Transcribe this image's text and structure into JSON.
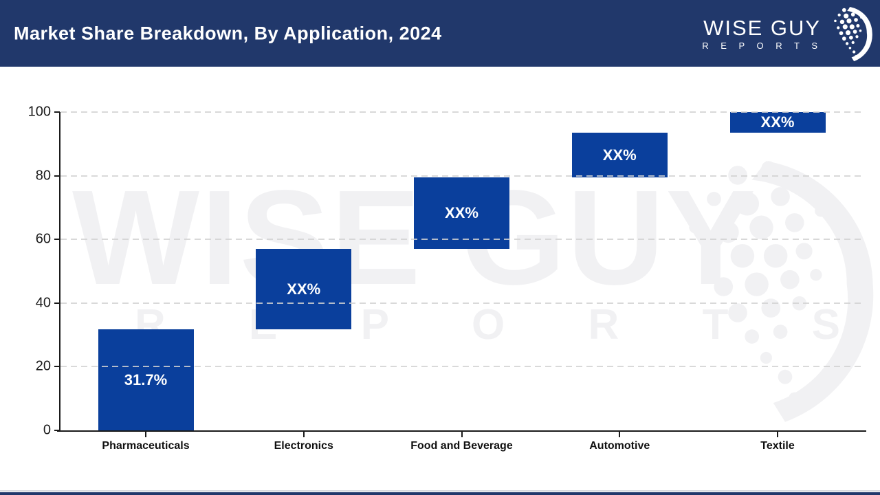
{
  "header": {
    "title": "Market Share Breakdown, By Application, 2024",
    "logo": {
      "line1": "WISE GUY",
      "line2": "R E P O R T S"
    }
  },
  "watermark": {
    "line1": "WISE GUY",
    "line2": "R E P O R T S"
  },
  "chart_data": {
    "type": "bar",
    "subtype": "waterfall",
    "title": "Market Share Breakdown, By Application, 2024",
    "categories": [
      "Pharmaceuticals",
      "Electronics",
      "Food and Beverage",
      "Automotive",
      "Textile"
    ],
    "segments": [
      {
        "category": "Pharmaceuticals",
        "start": 0,
        "end": 31.7,
        "label": "31.7%"
      },
      {
        "category": "Electronics",
        "start": 31.7,
        "end": 57.0,
        "label": "XX%"
      },
      {
        "category": "Food and Beverage",
        "start": 57.0,
        "end": 79.5,
        "label": "XX%"
      },
      {
        "category": "Automotive",
        "start": 79.5,
        "end": 93.5,
        "label": "XX%"
      },
      {
        "category": "Textile",
        "start": 93.5,
        "end": 100.0,
        "label": "XX%"
      }
    ],
    "xlabel": "",
    "ylabel": "",
    "ylim": [
      0,
      100
    ],
    "yticks": [
      0,
      20,
      40,
      60,
      80,
      100
    ],
    "grid": "horizontal-dashed",
    "legend": "none",
    "colors": {
      "bar": "#0a3f9c",
      "bar_label": "#ffffff",
      "axis": "#1a1a1a",
      "gridline": "#d2d2d2",
      "header_bg": "#21386b",
      "watermark": "#f1f1f3"
    }
  }
}
